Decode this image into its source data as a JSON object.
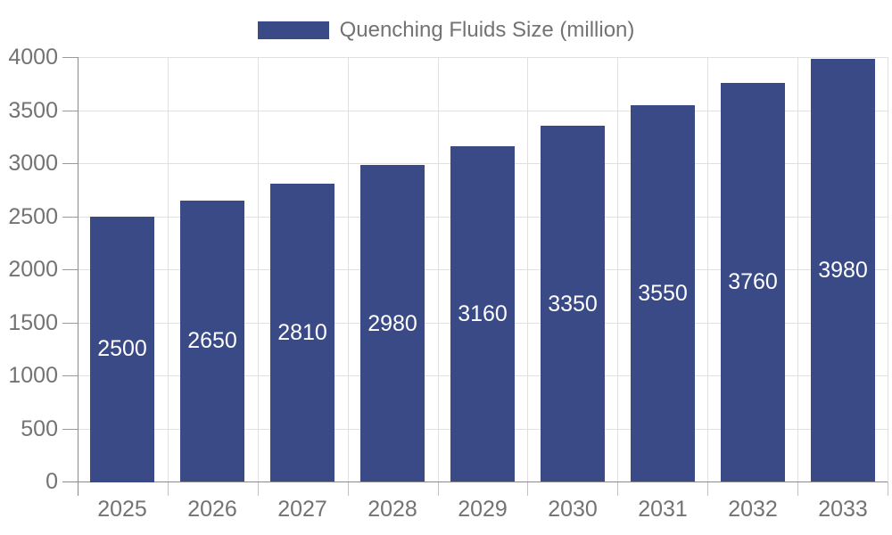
{
  "legend": {
    "label": "Quenching Fluids Size (million)"
  },
  "chart_data": {
    "type": "bar",
    "title": "Quenching Fluids Size (million)",
    "series_name": "Quenching Fluids Size (million)",
    "categories": [
      "2025",
      "2026",
      "2027",
      "2028",
      "2029",
      "2030",
      "2031",
      "2032",
      "2033"
    ],
    "values": [
      2500,
      2650,
      2810,
      2980,
      3160,
      3350,
      3550,
      3760,
      3980
    ],
    "xlabel": "",
    "ylabel": "",
    "ylim": [
      0,
      4000
    ],
    "y_ticks": [
      0,
      500,
      1000,
      1500,
      2000,
      2500,
      3000,
      3500,
      4000
    ],
    "grid": true,
    "legend_position": "top-center",
    "value_labels": "inside-center-white",
    "colors": {
      "bar": "#394A87",
      "text": "#737373",
      "value_label": "#FFFFFF",
      "gridline": "#E0E0E0",
      "axis_line": "#8A8A8A",
      "y_tick": "#9A9A9A",
      "x_tick": "#C2C2C2",
      "background": "#FFFFFF"
    }
  }
}
